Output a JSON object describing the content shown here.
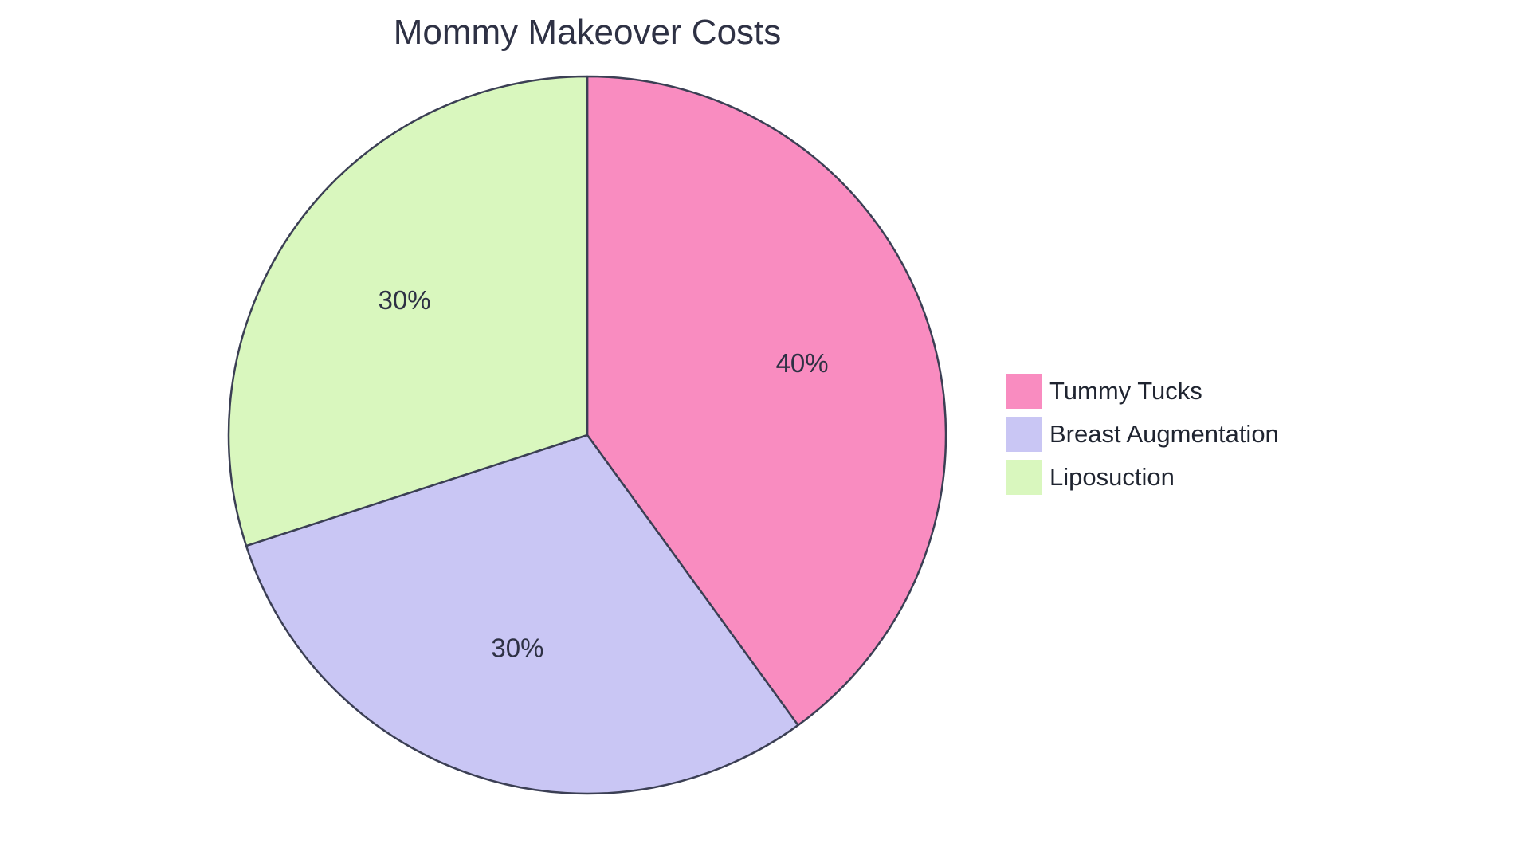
{
  "title": "Mommy Makeover Costs",
  "chart_data": {
    "type": "pie",
    "title": "Mommy Makeover Costs",
    "start_angle_deg": 0,
    "direction": "clockwise",
    "slices": [
      {
        "label": "Tummy Tucks",
        "value": 40,
        "display": "40%",
        "color": "#F98CC0"
      },
      {
        "label": "Breast Augmentation",
        "value": 30,
        "display": "30%",
        "color": "#C9C6F4"
      },
      {
        "label": "Liposuction",
        "value": 30,
        "display": "30%",
        "color": "#D9F7BE"
      }
    ],
    "legend_position": "right",
    "stroke_color": "#3B3F54",
    "label_color": "#2E3144"
  }
}
